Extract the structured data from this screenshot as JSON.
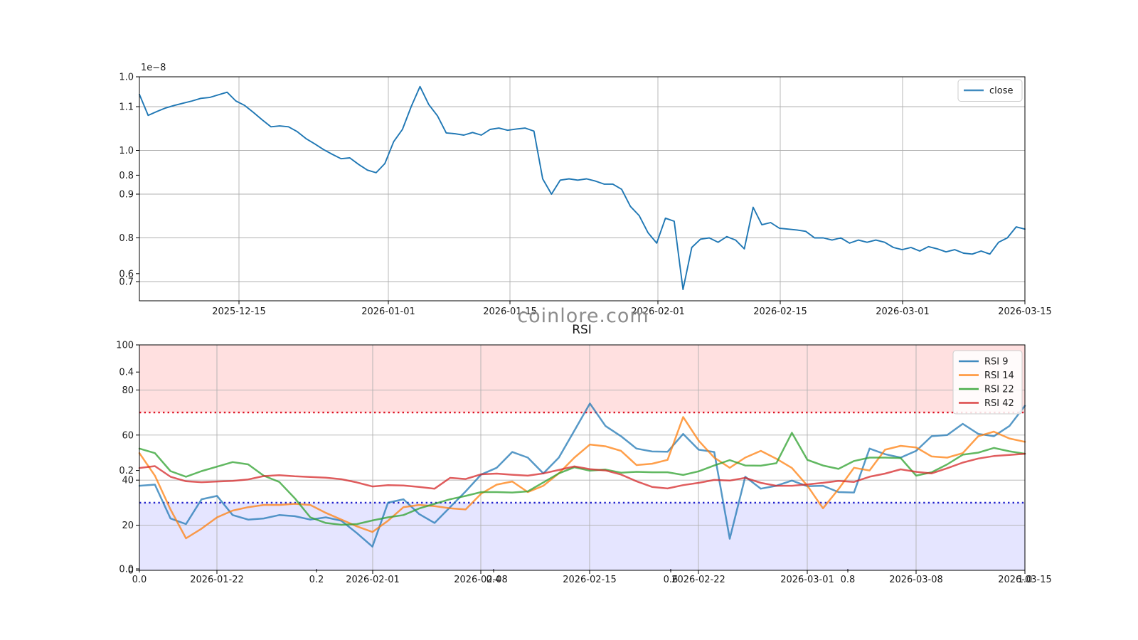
{
  "watermark": "coinlore.com",
  "colors": {
    "close_line": "#1f77b4",
    "rsi9": "#1f77b4",
    "rsi14": "#ff7f0e",
    "rsi22": "#2ca02c",
    "rsi42": "#d62728",
    "grid": "#b0b0b0",
    "spine": "#000000",
    "text": "#1a1a1a",
    "watermark_gray": "#8c8c8c",
    "overbought_line": "#dd1122",
    "oversold_line": "#2222cc",
    "overbought_band": "rgba(255,0,0,0.12)",
    "oversold_band": "rgba(0,0,255,0.10)",
    "legend_border": "#cccccc",
    "legend_bg": "rgba(255,255,255,0.85)"
  },
  "top_chart": {
    "offset_label": "1e−8",
    "legend": [
      {
        "label": "close",
        "color_key": "close_line"
      }
    ],
    "y_tick_labels": [
      "1.1",
      "1.0",
      "0.9",
      "0.8",
      "0.7"
    ],
    "y_tick_values": [
      1.1,
      1.0,
      0.9,
      0.8,
      0.7
    ],
    "x_tick_labels": [
      "2025-12-15",
      "2026-01-01",
      "2026-01-15",
      "2026-02-01",
      "2026-02-15",
      "2026-03-01",
      "2026-03-15"
    ]
  },
  "bottom_chart": {
    "title": "RSI",
    "legend": [
      {
        "label": "RSI 9",
        "color_key": "rsi9"
      },
      {
        "label": "RSI 14",
        "color_key": "rsi14"
      },
      {
        "label": "RSI 22",
        "color_key": "rsi22"
      },
      {
        "label": "RSI 42",
        "color_key": "rsi42"
      }
    ],
    "y_tick_labels": [
      "100",
      "80",
      "60",
      "40",
      "20",
      "0"
    ],
    "y_tick_values": [
      100,
      80,
      60,
      40,
      20,
      0
    ],
    "x_tick_labels": [
      "2026-01-22",
      "2026-02-01",
      "2026-02-08",
      "2026-02-15",
      "2026-02-22",
      "2026-03-01",
      "2026-03-08",
      "2026-03-15"
    ],
    "overbought_level": 70,
    "oversold_level": 30
  },
  "overlay_axis": {
    "x_tick_labels": [
      "0.0",
      "0.2",
      "0.4",
      "0.6",
      "0.8",
      "1.0"
    ],
    "y_tick_labels_top_region": [
      "1.0",
      "0.8",
      "0.6"
    ],
    "y_tick_labels_bottom_region": [
      "0.4",
      "0.2",
      "0.0"
    ]
  },
  "chart_data": [
    {
      "type": "line",
      "title": "",
      "ylabel_offset": "1e-8",
      "x_start": "2025-12-04",
      "x_end": "2026-03-15",
      "x_interval": "daily",
      "xlim": [
        "2025-12-04",
        "2026-03-15"
      ],
      "ylim": [
        0.656,
        1.168
      ],
      "grid": true,
      "legend_position": "upper right",
      "series": [
        {
          "name": "close",
          "unit": "1e-8",
          "values": [
            1.128,
            1.08,
            1.089,
            1.097,
            1.103,
            1.108,
            1.113,
            1.119,
            1.121,
            1.127,
            1.133,
            1.113,
            1.103,
            1.087,
            1.07,
            1.054,
            1.056,
            1.054,
            1.043,
            1.027,
            1.015,
            1.002,
            0.991,
            0.981,
            0.983,
            0.968,
            0.955,
            0.949,
            0.97,
            1.02,
            1.048,
            1.1,
            1.146,
            1.105,
            1.079,
            1.04,
            1.038,
            1.035,
            1.041,
            1.035,
            1.048,
            1.051,
            1.046,
            1.049,
            1.051,
            1.044,
            0.935,
            0.9,
            0.932,
            0.935,
            0.932,
            0.935,
            0.93,
            0.923,
            0.923,
            0.911,
            0.872,
            0.851,
            0.812,
            0.788,
            0.845,
            0.838,
            0.682,
            0.778,
            0.797,
            0.8,
            0.79,
            0.803,
            0.795,
            0.775,
            0.87,
            0.83,
            0.835,
            0.822,
            0.82,
            0.818,
            0.815,
            0.8,
            0.8,
            0.795,
            0.8,
            0.788,
            0.795,
            0.79,
            0.795,
            0.79,
            0.778,
            0.773,
            0.778,
            0.77,
            0.78,
            0.775,
            0.768,
            0.773,
            0.765,
            0.763,
            0.77,
            0.763,
            0.79,
            0.8,
            0.825,
            0.82
          ]
        }
      ]
    },
    {
      "type": "line",
      "title": "RSI",
      "x_start": "2026-01-17",
      "x_end": "2026-03-15",
      "x_interval": "daily",
      "xlim": [
        "2026-01-17",
        "2026-03-15"
      ],
      "ylim": [
        0,
        100
      ],
      "grid": true,
      "legend_position": "upper right",
      "hlines": [
        {
          "y": 70,
          "style": "dotted",
          "color": "red"
        },
        {
          "y": 30,
          "style": "dotted",
          "color": "blue"
        }
      ],
      "bands": [
        {
          "from": 70,
          "to": 100,
          "color": "red",
          "alpha": 0.1
        },
        {
          "from": 0,
          "to": 30,
          "color": "blue",
          "alpha": 0.1
        }
      ],
      "series": [
        {
          "name": "RSI 9",
          "values": [
            37.5,
            38,
            23,
            20.5,
            31.5,
            33,
            24.5,
            22.5,
            23,
            24.5,
            24,
            22.5,
            23.5,
            22,
            16.5,
            10.5,
            30,
            31.5,
            25,
            21,
            28,
            35,
            42.5,
            45.5,
            52.5,
            50,
            43,
            50,
            62,
            74,
            64,
            59.5,
            54,
            52.7,
            52.6,
            60.5,
            53.5,
            52.5,
            14,
            41.5,
            36.2,
            37.5,
            39.8,
            37.3,
            37.5,
            34.7,
            34.5,
            54,
            51.5,
            50,
            53,
            59.5,
            60,
            65,
            60.5,
            59.5,
            64,
            73
          ]
        },
        {
          "name": "RSI 14",
          "values": [
            52,
            42,
            27,
            14.2,
            18.5,
            23.5,
            26.5,
            28,
            29,
            29,
            29.5,
            29,
            25.5,
            22.5,
            19.5,
            17,
            22,
            28,
            29,
            28.5,
            27.5,
            27,
            34,
            38,
            39.4,
            34.7,
            37.5,
            43,
            50,
            55.8,
            55,
            53,
            46.7,
            47.3,
            49,
            68,
            57.5,
            50,
            45.5,
            50,
            53,
            49.5,
            45.4,
            37.5,
            27.5,
            36,
            45.5,
            44.3,
            53.5,
            55.2,
            54.5,
            50.5,
            50,
            52,
            59.5,
            61.5,
            58.5,
            57
          ]
        },
        {
          "name": "RSI 22",
          "values": [
            54,
            52,
            44,
            41.5,
            44,
            46,
            48,
            47,
            42,
            39.2,
            32,
            23.5,
            21,
            20.2,
            20.5,
            22.1,
            23.5,
            24.5,
            27.4,
            29.5,
            31.5,
            33,
            34.7,
            34.7,
            34.5,
            35,
            39,
            43,
            45.7,
            44.2,
            44.7,
            43.3,
            43.7,
            43.5,
            43.5,
            42.3,
            43.9,
            46.5,
            48.9,
            46.5,
            46.4,
            47.5,
            61,
            49,
            46.5,
            45,
            48.5,
            50,
            50,
            49.8,
            42,
            43.5,
            47,
            51.3,
            52.2,
            54.3,
            52.8,
            51.7
          ]
        },
        {
          "name": "RSI 42",
          "values": [
            45.4,
            46.2,
            41.5,
            39.5,
            39.1,
            39.4,
            39.7,
            40.3,
            41.8,
            42.2,
            41.7,
            41.4,
            41.1,
            40.4,
            39,
            37.2,
            37.8,
            37.6,
            37,
            36.2,
            41,
            40.5,
            42.6,
            42.9,
            42.4,
            42,
            43,
            44.5,
            46.1,
            44.9,
            44.3,
            42.5,
            39.5,
            37,
            36.3,
            37.8,
            38.8,
            40.1,
            39.8,
            41,
            38.8,
            37.5,
            37.5,
            38.1,
            38.8,
            39.7,
            39.2,
            41.5,
            42.9,
            44.8,
            43.7,
            43,
            45.3,
            47.8,
            49.6,
            50.7,
            51.2,
            51.7
          ]
        }
      ]
    }
  ]
}
